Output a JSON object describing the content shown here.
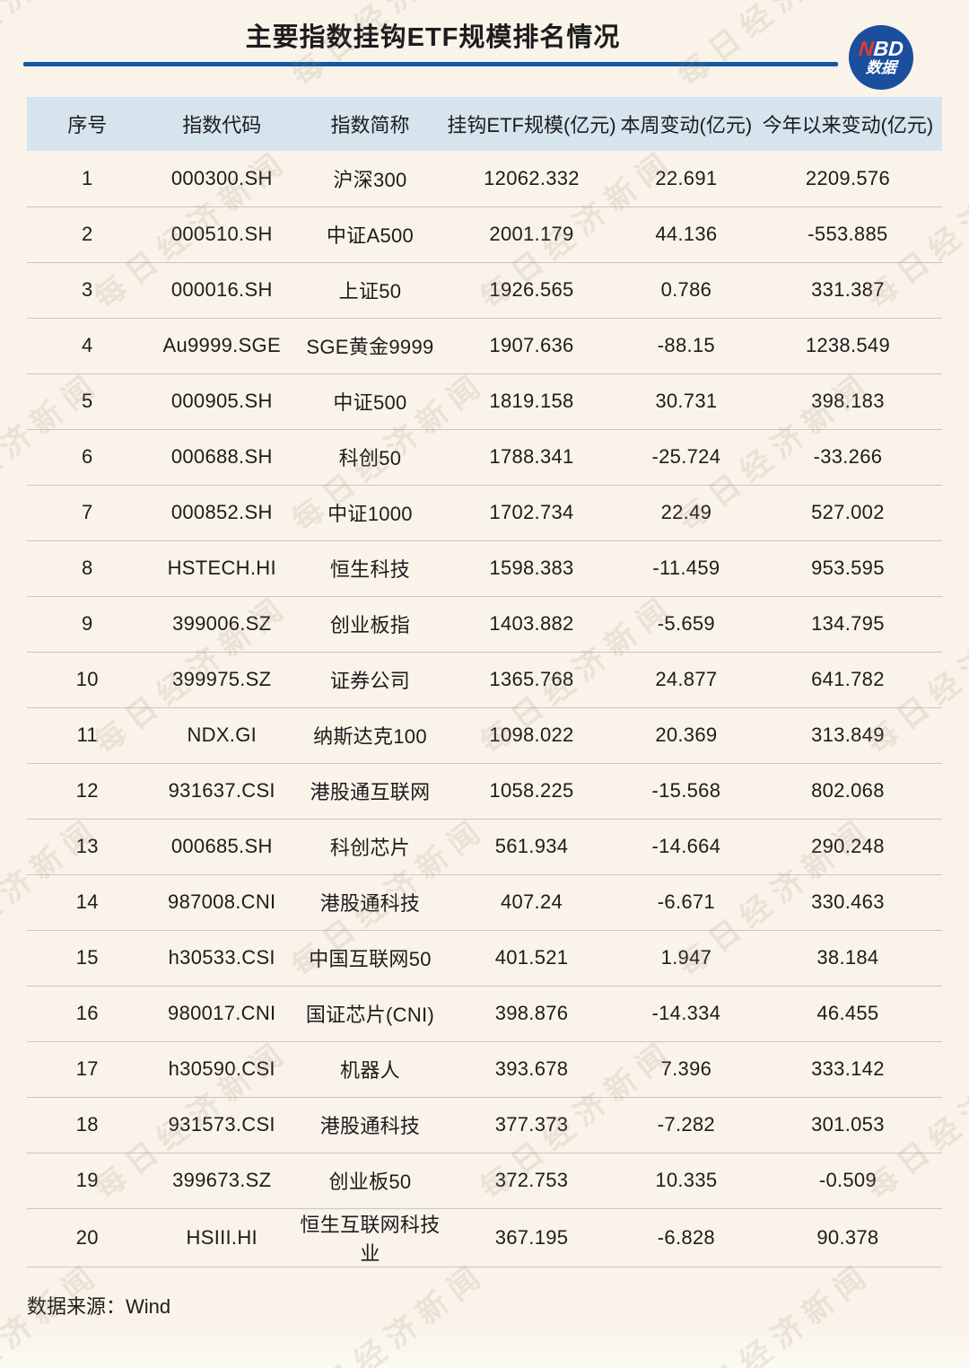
{
  "page": {
    "title": "主要指数挂钩ETF规模排名情况",
    "source": "数据来源：Wind",
    "watermark": "每日经济新闻",
    "logo": {
      "n": "N",
      "bd": "BD",
      "sub": "数据"
    }
  },
  "colors": {
    "page_bg": "#f9f3ea",
    "header_row_bg": "#d6e4ee",
    "accent_line_blue": "#1358a6",
    "logo_blue": "#1c4e9e",
    "logo_red": "#e8392b",
    "text_dark": "#1c1c1c",
    "row_divider": "#c9c7c2",
    "watermark": "rgba(158,139,110,0.16)"
  },
  "chart_data": {
    "type": "table",
    "title": "主要指数挂钩ETF规模排名情况",
    "source": "Wind",
    "columns": [
      "序号",
      "指数代码",
      "指数简称",
      "挂钩ETF规模(亿元)",
      "本周变动(亿元)",
      "今年以来变动(亿元)"
    ],
    "rows": [
      [
        "1",
        "000300.SH",
        "沪深300",
        "12062.332",
        "22.691",
        "2209.576"
      ],
      [
        "2",
        "000510.SH",
        "中证A500",
        "2001.179",
        "44.136",
        "-553.885"
      ],
      [
        "3",
        "000016.SH",
        "上证50",
        "1926.565",
        "0.786",
        "331.387"
      ],
      [
        "4",
        "Au9999.SGE",
        "SGE黄金9999",
        "1907.636",
        "-88.15",
        "1238.549"
      ],
      [
        "5",
        "000905.SH",
        "中证500",
        "1819.158",
        "30.731",
        "398.183"
      ],
      [
        "6",
        "000688.SH",
        "科创50",
        "1788.341",
        "-25.724",
        "-33.266"
      ],
      [
        "7",
        "000852.SH",
        "中证1000",
        "1702.734",
        "22.49",
        "527.002"
      ],
      [
        "8",
        "HSTECH.HI",
        "恒生科技",
        "1598.383",
        "-11.459",
        "953.595"
      ],
      [
        "9",
        "399006.SZ",
        "创业板指",
        "1403.882",
        "-5.659",
        "134.795"
      ],
      [
        "10",
        "399975.SZ",
        "证券公司",
        "1365.768",
        "24.877",
        "641.782"
      ],
      [
        "11",
        "NDX.GI",
        "纳斯达克100",
        "1098.022",
        "20.369",
        "313.849"
      ],
      [
        "12",
        "931637.CSI",
        "港股通互联网",
        "1058.225",
        "-15.568",
        "802.068"
      ],
      [
        "13",
        "000685.SH",
        "科创芯片",
        "561.934",
        "-14.664",
        "290.248"
      ],
      [
        "14",
        "987008.CNI",
        "港股通科技",
        "407.24",
        "-6.671",
        "330.463"
      ],
      [
        "15",
        "h30533.CSI",
        "中国互联网50",
        "401.521",
        "1.947",
        "38.184"
      ],
      [
        "16",
        "980017.CNI",
        "国证芯片(CNI)",
        "398.876",
        "-14.334",
        "46.455"
      ],
      [
        "17",
        "h30590.CSI",
        "机器人",
        "393.678",
        "7.396",
        "333.142"
      ],
      [
        "18",
        "931573.CSI",
        "港股通科技",
        "377.373",
        "-7.282",
        "301.053"
      ],
      [
        "19",
        "399673.SZ",
        "创业板50",
        "372.753",
        "10.335",
        "-0.509"
      ],
      [
        "20",
        "HSIII.HI",
        "恒生互联网科技业",
        "367.195",
        "-6.828",
        "90.378"
      ]
    ]
  }
}
